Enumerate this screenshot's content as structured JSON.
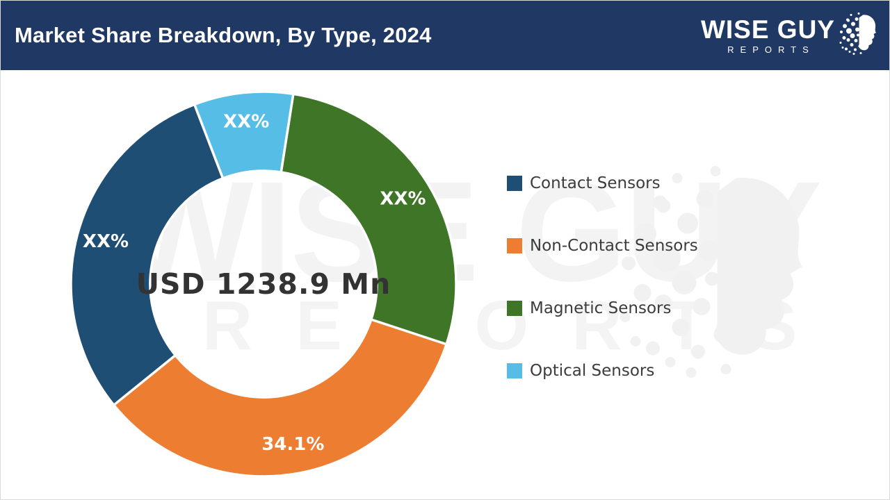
{
  "header": {
    "title": "Market Share Breakdown, By Type, 2024",
    "bg_color": "#203864",
    "logo": {
      "line1": "WISE GUY",
      "line2": "REPORTS",
      "face_icon": "dotted-head-profile-icon"
    }
  },
  "watermark": {
    "line1": "WISE GUY",
    "line2": "REPORTS",
    "face_icon": "dotted-head-profile-icon"
  },
  "chart_data": {
    "type": "pie",
    "donut": true,
    "title": "Market Share Breakdown, By Type, 2024",
    "center_label": "USD 1238.9 Mn",
    "start_angle_deg": 111,
    "direction": "counterclockwise",
    "legend_position": "right",
    "inner_radius_ratio": 0.59,
    "segments": [
      {
        "name": "Contact Sensors",
        "label": "XX%",
        "value_pct": 30.0,
        "value_masked": true,
        "color": "#1f4e74"
      },
      {
        "name": "Non-Contact Sensors",
        "label": "34.1%",
        "value_pct": 34.1,
        "value_masked": false,
        "color": "#ed7d31"
      },
      {
        "name": "Magnetic Sensors",
        "label": "XX%",
        "value_pct": 27.6,
        "value_masked": true,
        "color": "#3f7527"
      },
      {
        "name": "Optical Sensors",
        "label": "XX%",
        "value_pct": 8.3,
        "value_masked": true,
        "color": "#55bde6"
      }
    ]
  }
}
